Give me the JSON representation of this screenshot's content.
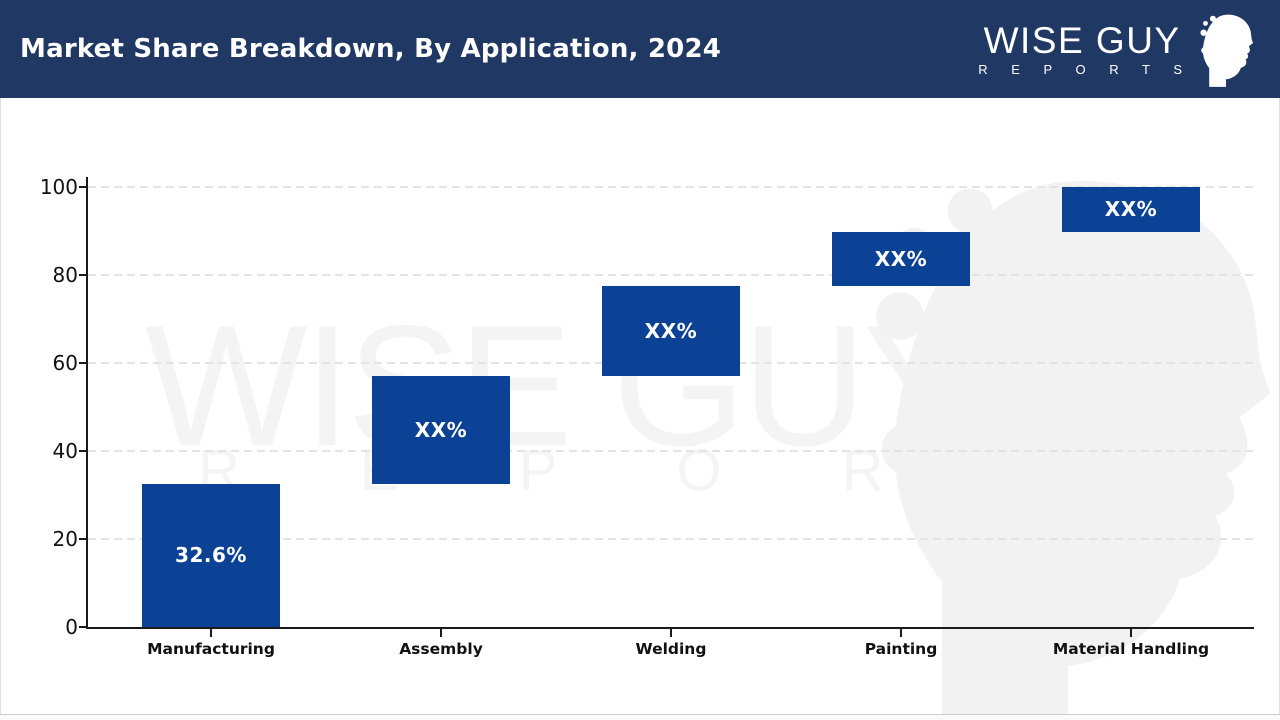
{
  "header": {
    "title": "Market Share Breakdown, By Application, 2024",
    "brand_line1": "WISE GUY",
    "brand_line2": "R E P O R T S",
    "bg_color": "#203864"
  },
  "watermark": {
    "line1": "WISE GUY",
    "line2": "R E P O R T S"
  },
  "chart_data": {
    "type": "bar",
    "subtype": "waterfall-floating-bars",
    "title": "Market Share Breakdown, By Application, 2024",
    "categories": [
      "Manufacturing",
      "Assembly",
      "Welding",
      "Painting",
      "Material Handling"
    ],
    "segments": [
      {
        "category": "Manufacturing",
        "start": 0,
        "end": 32.6,
        "label": "32.6%"
      },
      {
        "category": "Assembly",
        "start": 32.6,
        "end": 57.1,
        "label": "XX%"
      },
      {
        "category": "Welding",
        "start": 57.1,
        "end": 77.5,
        "label": "XX%"
      },
      {
        "category": "Painting",
        "start": 77.5,
        "end": 89.8,
        "label": "XX%"
      },
      {
        "category": "Material Handling",
        "start": 89.8,
        "end": 100,
        "label": "XX%"
      }
    ],
    "yticks": [
      0,
      20,
      40,
      60,
      80,
      100
    ],
    "ylim": [
      0,
      100
    ],
    "xlabel": "",
    "ylabel": "",
    "grid": "horizontal-dashed",
    "legend": "none",
    "bar_color": "#0B4296",
    "bar_label_color": "#ffffff",
    "axis_color": "#1a1a1a"
  }
}
